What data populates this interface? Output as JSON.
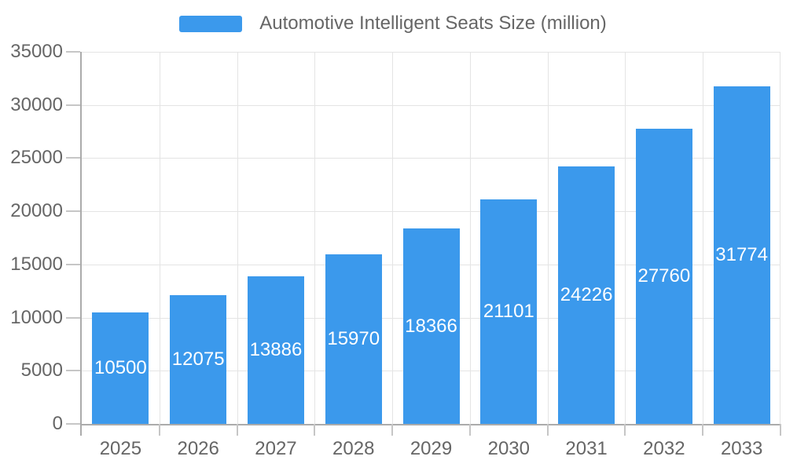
{
  "colors": {
    "bar": "#3b99ec",
    "grid": "#e4e4e4",
    "axis": "#ababab",
    "tick": "#c6c6c6",
    "tick_text": "#666666",
    "value_text": "#ffffff"
  },
  "chart_data": {
    "type": "bar",
    "title": "Automotive Intelligent Seats Size (million)",
    "categories": [
      "2025",
      "2026",
      "2027",
      "2028",
      "2029",
      "2030",
      "2031",
      "2032",
      "2033"
    ],
    "values": [
      10500,
      12075,
      13886,
      15970,
      18366,
      21101,
      24226,
      27760,
      31774
    ],
    "xlabel": "",
    "ylabel": "",
    "ylim": [
      0,
      35000
    ],
    "ytick_step": 5000,
    "grid": true,
    "legend_position": "top",
    "value_labels": "centered-inside-bars"
  }
}
